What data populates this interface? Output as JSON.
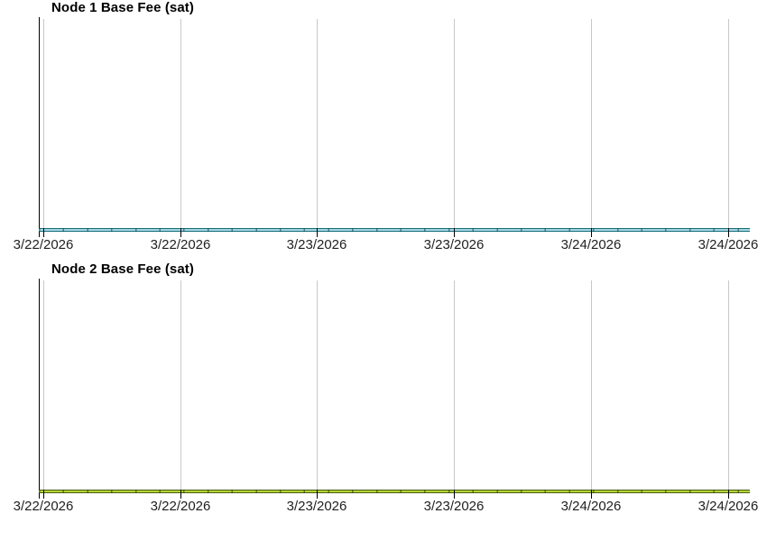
{
  "page": {
    "background_color": "#ffffff",
    "gridline_color": "#c8c8c8",
    "axis_color": "#000000",
    "label_color": "#1f1f1f"
  },
  "chart_data": [
    {
      "type": "line",
      "title": "Node 1 Base Fee (sat)",
      "x": [
        "3/22/2026",
        "3/22/2026",
        "3/23/2026",
        "3/23/2026",
        "3/24/2026",
        "3/24/2026"
      ],
      "xlabel": "",
      "ylabel": "",
      "y_tick_labels": [],
      "legend": "none",
      "grid": "vertical-only",
      "series": [
        {
          "name": "Node 1 Base Fee",
          "values": [
            0,
            0,
            0,
            0,
            0,
            0
          ],
          "stroke_dark": "#0f6b6f",
          "stroke_light": "#a9d7e8",
          "shape": "flat line on baseline with small point markers"
        }
      ]
    },
    {
      "type": "line",
      "title": "Node 2 Base Fee (sat)",
      "x": [
        "3/22/2026",
        "3/22/2026",
        "3/23/2026",
        "3/23/2026",
        "3/24/2026",
        "3/24/2026"
      ],
      "xlabel": "",
      "ylabel": "",
      "y_tick_labels": [],
      "legend": "none",
      "grid": "vertical-only",
      "series": [
        {
          "name": "Node 2 Base Fee",
          "values": [
            0,
            0,
            0,
            0,
            0,
            0
          ],
          "stroke_dark": "#475a11",
          "stroke_light": "#b5d437",
          "shape": "flat line on baseline with small point markers"
        }
      ]
    }
  ]
}
